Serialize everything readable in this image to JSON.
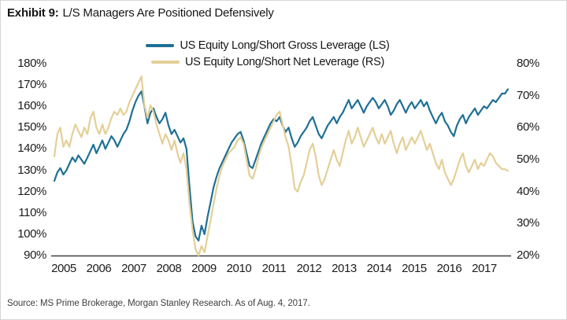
{
  "title": {
    "prefix": "Exhibit 9:",
    "text": "L/S Managers Are Positioned Defensively"
  },
  "source": "Source: MS Prime Brokerage, Morgan Stanley Research. As of Aug. 4, 2017.",
  "chart_data": {
    "type": "line",
    "title": "L/S Managers Are Positioned Defensively",
    "x_start_year": 2005,
    "x_step": "monthly",
    "x_end_label": "Aug 2017",
    "x_ticks": [
      "2005",
      "2006",
      "2007",
      "2008",
      "2009",
      "2010",
      "2011",
      "2012",
      "2013",
      "2014",
      "2015",
      "2016",
      "2017"
    ],
    "grid": false,
    "legend_position": "top-center",
    "axes": {
      "left": {
        "min": 90,
        "max": 180,
        "step": 10,
        "suffix": "%"
      },
      "right": {
        "min": 20,
        "max": 80,
        "step": 10,
        "suffix": "%"
      }
    },
    "axis_line_color": "#3f3f3f",
    "series": [
      {
        "name": "US Equity Long/Short Gross Leverage (LS)",
        "axis": "left",
        "color": "#1f7096",
        "values": [
          125,
          129,
          131,
          128,
          130,
          133,
          136,
          134,
          137,
          135,
          133,
          136,
          139,
          142,
          138,
          141,
          144,
          140,
          143,
          146,
          144,
          141,
          144,
          147,
          149,
          153,
          158,
          162,
          165,
          167,
          160,
          152,
          157,
          159,
          155,
          152,
          154,
          157,
          151,
          147,
          149,
          146,
          143,
          145,
          140,
          122,
          106,
          99,
          97,
          104,
          100,
          108,
          115,
          122,
          127,
          131,
          134,
          137,
          140,
          143,
          145,
          147,
          148,
          144,
          138,
          132,
          131,
          135,
          139,
          143,
          146,
          149,
          152,
          154,
          153,
          155,
          151,
          148,
          150,
          145,
          141,
          143,
          146,
          148,
          150,
          153,
          155,
          151,
          147,
          145,
          148,
          151,
          153,
          155,
          152,
          155,
          157,
          160,
          163,
          159,
          161,
          163,
          160,
          157,
          160,
          162,
          164,
          162,
          159,
          161,
          163,
          160,
          156,
          158,
          161,
          163,
          160,
          157,
          160,
          162,
          159,
          161,
          163,
          160,
          162,
          158,
          155,
          152,
          155,
          157,
          153,
          151,
          148,
          146,
          151,
          154,
          156,
          152,
          155,
          157,
          159,
          156,
          158,
          160,
          159,
          161,
          163,
          162,
          164,
          166,
          166,
          168
        ]
      },
      {
        "name": "US Equity Long/Short Net Leverage (RS)",
        "axis": "right",
        "color": "#e4cf97",
        "values": [
          51,
          58,
          60,
          54,
          56,
          54,
          58,
          61,
          59,
          57,
          60,
          58,
          63,
          65,
          60,
          58,
          61,
          58,
          60,
          63,
          65,
          64,
          66,
          64,
          65,
          68,
          70,
          72,
          74,
          76,
          67,
          63,
          67,
          65,
          61,
          58,
          55,
          58,
          56,
          53,
          56,
          52,
          49,
          52,
          47,
          36,
          28,
          22,
          20,
          23,
          21,
          26,
          31,
          36,
          41,
          45,
          48,
          50,
          52,
          53,
          54,
          56,
          57,
          55,
          50,
          45,
          44,
          47,
          51,
          54,
          56,
          58,
          60,
          62,
          64,
          65,
          61,
          57,
          54,
          48,
          41,
          40,
          43,
          45,
          49,
          53,
          55,
          51,
          45,
          42,
          44,
          47,
          50,
          53,
          50,
          48,
          52,
          56,
          59,
          55,
          57,
          60,
          57,
          54,
          56,
          58,
          60,
          57,
          55,
          58,
          55,
          57,
          59,
          55,
          52,
          55,
          57,
          53,
          55,
          57,
          55,
          57,
          59,
          56,
          53,
          55,
          52,
          49,
          47,
          50,
          46,
          44,
          42,
          44,
          47,
          50,
          52,
          48,
          46,
          48,
          50,
          47,
          49,
          48,
          50,
          52,
          51,
          49,
          48,
          47,
          47,
          46.5
        ]
      }
    ]
  }
}
